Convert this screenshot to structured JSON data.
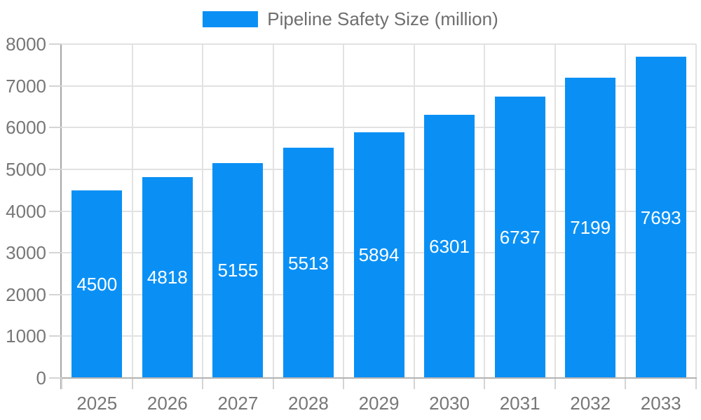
{
  "chart_data": {
    "type": "bar",
    "title": "Pipeline Safety Size (million)",
    "legend": {
      "entries": [
        "Pipeline Safety Size (million)"
      ],
      "position": "top-center"
    },
    "categories": [
      "2025",
      "2026",
      "2027",
      "2028",
      "2029",
      "2030",
      "2031",
      "2032",
      "2033"
    ],
    "values": [
      4500,
      4818,
      5155,
      5513,
      5894,
      6301,
      6737,
      7199,
      7693
    ],
    "bar_labels": [
      "4500",
      "4818",
      "5155",
      "5513",
      "5894",
      "6301",
      "6737",
      "7199",
      "7693"
    ],
    "bar_label_position": "inside-center",
    "xlabel": "",
    "ylabel": "",
    "ylim": [
      0,
      8000
    ],
    "yticks": [
      0,
      1000,
      2000,
      3000,
      4000,
      5000,
      6000,
      7000,
      8000
    ],
    "grid": true,
    "colors": {
      "bar": "#0a90f5",
      "bar_value_label": "#ffffff",
      "axis_label": "#777777",
      "legend_text": "#6e6e6e",
      "gridline": "#e2e2e2",
      "tick": "#d4d4d4",
      "y_axis_line": "#a6a6a6",
      "x_axis_line": "#b3b3b3",
      "background": "#ffffff"
    }
  }
}
